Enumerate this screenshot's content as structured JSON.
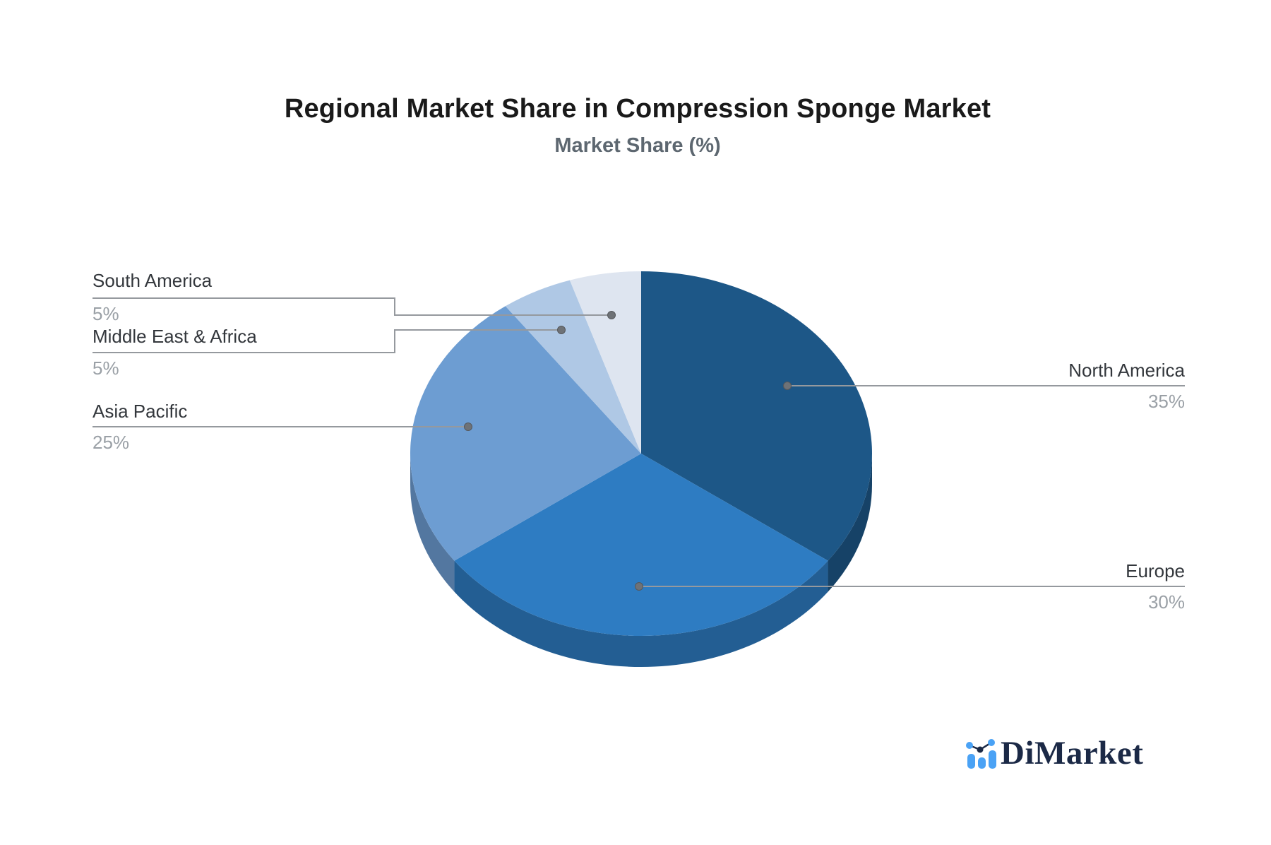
{
  "header": {
    "title": "Regional Market Share in Compression Sponge Market",
    "subtitle": "Market Share (%)"
  },
  "chart_data": {
    "type": "pie",
    "style": "3d",
    "title": "Regional Market Share in Compression Sponge Market",
    "subtitle": "Market Share (%)",
    "unit": "%",
    "start_angle_deg": 0,
    "direction": "clockwise",
    "legend_position": "callouts",
    "categories": [
      "North America",
      "Europe",
      "Asia Pacific",
      "Middle East & Africa",
      "South America"
    ],
    "values": [
      35,
      30,
      25,
      5,
      5
    ],
    "value_labels": [
      "35%",
      "30%",
      "25%",
      "5%",
      "5%"
    ],
    "colors": [
      "#1d5787",
      "#2e7cc2",
      "#6d9dd2",
      "#afc8e5",
      "#dee5f0"
    ]
  },
  "branding": {
    "logo_text": "DiMarket",
    "logo_text_color": "#1b2946",
    "logo_bar_color": "#4aa2f5"
  },
  "palette": {
    "title_text": "#1a1a1a",
    "subtitle_text": "#5d6770",
    "label_text": "#33373c",
    "value_text": "#9aa0a6",
    "leader_line": "#95999e",
    "leader_dot": "#6e7277",
    "background": "#ffffff"
  }
}
